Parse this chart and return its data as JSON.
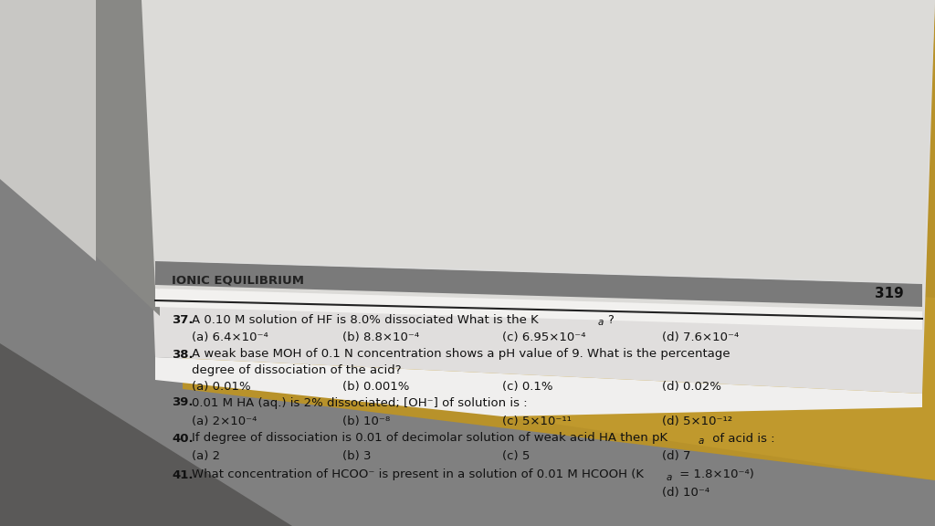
{
  "bg_wood_color": "#b8952a",
  "bg_dark_color": "#5a5a5a",
  "page_color": "#d8d8d4",
  "page_white": "#e8e8e4",
  "header_bg": "#888888",
  "header_text": "IONIC EQUILIBRIUM",
  "page_number": "319",
  "spine_color": "#606060",
  "text_color": "#111111",
  "q37_text": "A 0.10 M solution of HF is 8.0% dissociated What is the K",
  "q37_sub": "a",
  "q37_end": "?",
  "q37_opts": [
    "(a) 6.4×10⁻⁴",
    "(b) 8.8×10⁻⁴",
    "(c) 6.95×10⁻⁴",
    "(d) 7.6×10⁻⁴"
  ],
  "q38_text": "A weak base MOH of 0.1 N concentration shows a pH value of 9. What is the percentage",
  "q38_text2": "degree of dissociation of the acid?",
  "q38_opts": [
    "(a) 0.01%",
    "(b) 0.001%",
    "(c) 0.1%",
    "(d) 0.02%"
  ],
  "q39_text": "0.01 M HA (aq.) is 2% dissociated; [OH⁻] of solution is :",
  "q39_opts": [
    "(a) 2×10⁻⁴",
    "(b) 10⁻⁸",
    "(c) 5×10⁻¹¹",
    "(d) 5×10⁻¹²"
  ],
  "q40_text": "If degree of dissociation is 0.01 of decimolar solution of weak acid HA then pK",
  "q40_sub": "a",
  "q40_end": " of acid is :",
  "q40_opts": [
    "(a) 2",
    "(b) 3",
    "(c) 5",
    "(d) 7"
  ],
  "q41_text": "What concentration of HCOO⁻ is present in a solution of 0.01 M HCOOH (K",
  "q41_sub": "a",
  "q41_end": " = 1.8×10⁻⁴)",
  "q41_opts_partial": [
    "(d) 10⁻⁴"
  ]
}
